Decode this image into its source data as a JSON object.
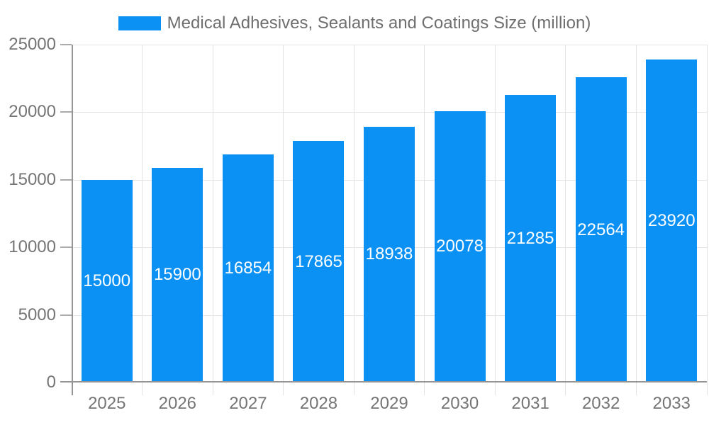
{
  "chart_data": {
    "type": "bar",
    "title": "Medical Adhesives, Sealants and Coatings Size (million)",
    "legend": {
      "label": "Medical Adhesives, Sealants and Coatings Size (million)",
      "position": "top-center"
    },
    "categories": [
      "2025",
      "2026",
      "2027",
      "2028",
      "2029",
      "2030",
      "2031",
      "2032",
      "2033"
    ],
    "values": [
      15000,
      15900,
      16854,
      17865,
      18938,
      20078,
      21285,
      22564,
      23920
    ],
    "xlabel": "",
    "ylabel": "",
    "ylim": [
      0,
      25000
    ],
    "yticks": [
      0,
      5000,
      10000,
      15000,
      20000,
      25000
    ],
    "grid": "on",
    "value_labels": "inside-center"
  },
  "colors": {
    "bar": "#0b90f4",
    "grid": "#e4e4e4",
    "axis": "#949494",
    "tick": "#ababab",
    "axis_text": "#757575",
    "legend_text": "#6f6f6f",
    "value_label_text": "#ffffff",
    "background": "#ffffff"
  }
}
